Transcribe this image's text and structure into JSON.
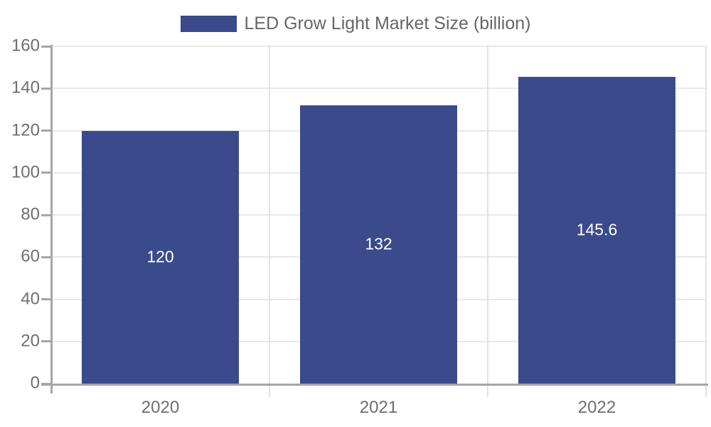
{
  "legend": {
    "label": "LED Grow Light Market Size (billion)"
  },
  "colors": {
    "bar": "#3A4A8B",
    "bar_label": "#FFFFFF",
    "axis_line": "#A6A6A6",
    "grid_horizontal": "#E8E8E8",
    "grid_vertical": "#E2E2E2",
    "tick_text": "#6E6E6E",
    "legend_text": "#666666",
    "background": "#FFFFFF"
  },
  "chart_data": {
    "type": "bar",
    "title": "LED Grow Light Market Size (billion)",
    "categories": [
      "2020",
      "2021",
      "2022"
    ],
    "series": [
      {
        "name": "LED Grow Light Market Size (billion)",
        "values": [
          120,
          132,
          145.6
        ]
      }
    ],
    "bar_value_labels": [
      "120",
      "132",
      "145.6"
    ],
    "xlabel": "",
    "ylabel": "",
    "ylim": [
      0,
      160
    ],
    "yticks": [
      0,
      20,
      40,
      60,
      80,
      100,
      120,
      140,
      160
    ],
    "grid": true,
    "legend_position": "top-center",
    "value_label_position": "inside-center"
  }
}
